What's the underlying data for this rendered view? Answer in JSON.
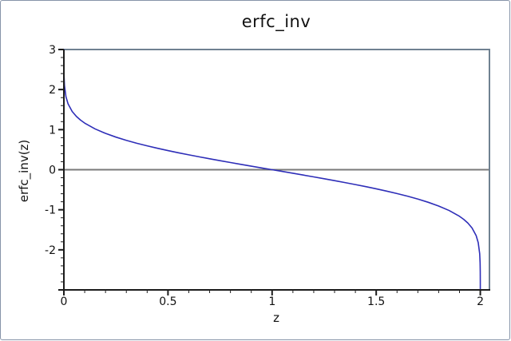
{
  "window": {
    "background": "#ffffff",
    "border_color": "#8693a8"
  },
  "colors": {
    "curve": "#2e2eb8",
    "axis": "#1c1c1c",
    "frame": "#6f8191",
    "zero_line": "#7a7a7a",
    "text": "#111111"
  },
  "chart_data": {
    "type": "line",
    "title": "erfc_inv",
    "xlabel": "z",
    "ylabel": "erfc_inv(z)",
    "xlim": [
      0,
      2.04
    ],
    "ylim": [
      -3,
      3
    ],
    "grid": false,
    "legend": "none",
    "zero_line_y": 0,
    "x_major_ticks": [
      0,
      0.5,
      1,
      1.5,
      2
    ],
    "x_tick_labels": [
      "0",
      "0.5",
      "1",
      "1.5",
      "2"
    ],
    "x_minor_step": 0.1,
    "y_major_ticks": [
      3,
      2,
      1,
      0,
      -1,
      -2
    ],
    "y_tick_labels": [
      "3",
      "2",
      "1",
      "0",
      "-1",
      "-2"
    ],
    "y_minor_step": 0.2,
    "series": [
      {
        "name": "erfc_inv",
        "points": [
          [
            2.21e-05,
            3.0
          ],
          [
            5e-05,
            2.8678
          ],
          [
            0.0001,
            2.7511
          ],
          [
            0.0003,
            2.5565
          ],
          [
            0.001,
            2.3268
          ],
          [
            0.003,
            2.0984
          ],
          [
            0.01,
            1.8214
          ],
          [
            0.02,
            1.645
          ],
          [
            0.04,
            1.4522
          ],
          [
            0.06,
            1.3299
          ],
          [
            0.08,
            1.2379
          ],
          [
            0.1,
            1.1631
          ],
          [
            0.15,
            1.0179
          ],
          [
            0.2,
            0.9062
          ],
          [
            0.25,
            0.8134
          ],
          [
            0.3,
            0.7329
          ],
          [
            0.35,
            0.6608
          ],
          [
            0.4,
            0.5951
          ],
          [
            0.45,
            0.5342
          ],
          [
            0.5,
            0.4769
          ],
          [
            0.55,
            0.4226
          ],
          [
            0.6,
            0.3708
          ],
          [
            0.65,
            0.3213
          ],
          [
            0.7,
            0.2725
          ],
          [
            0.75,
            0.2253
          ],
          [
            0.8,
            0.1791
          ],
          [
            0.85,
            0.1337
          ],
          [
            0.9,
            0.0889
          ],
          [
            0.95,
            0.0443
          ],
          [
            1.0,
            0.0
          ],
          [
            1.05,
            -0.0443
          ],
          [
            1.1,
            -0.0889
          ],
          [
            1.15,
            -0.1337
          ],
          [
            1.2,
            -0.1791
          ],
          [
            1.25,
            -0.2253
          ],
          [
            1.3,
            -0.2725
          ],
          [
            1.35,
            -0.3213
          ],
          [
            1.4,
            -0.3708
          ],
          [
            1.45,
            -0.4226
          ],
          [
            1.5,
            -0.4769
          ],
          [
            1.55,
            -0.5342
          ],
          [
            1.6,
            -0.5951
          ],
          [
            1.65,
            -0.6608
          ],
          [
            1.7,
            -0.7329
          ],
          [
            1.75,
            -0.8134
          ],
          [
            1.8,
            -0.9062
          ],
          [
            1.85,
            -1.0179
          ],
          [
            1.9,
            -1.1631
          ],
          [
            1.92,
            -1.2379
          ],
          [
            1.94,
            -1.3299
          ],
          [
            1.96,
            -1.4522
          ],
          [
            1.98,
            -1.645
          ],
          [
            1.99,
            -1.8214
          ],
          [
            1.997,
            -2.0984
          ],
          [
            1.999,
            -2.3268
          ],
          [
            1.9997,
            -2.5565
          ],
          [
            1.9999,
            -2.7511
          ],
          [
            1.99995,
            -2.8678
          ],
          [
            1.9999779,
            -3.0
          ]
        ]
      }
    ]
  }
}
